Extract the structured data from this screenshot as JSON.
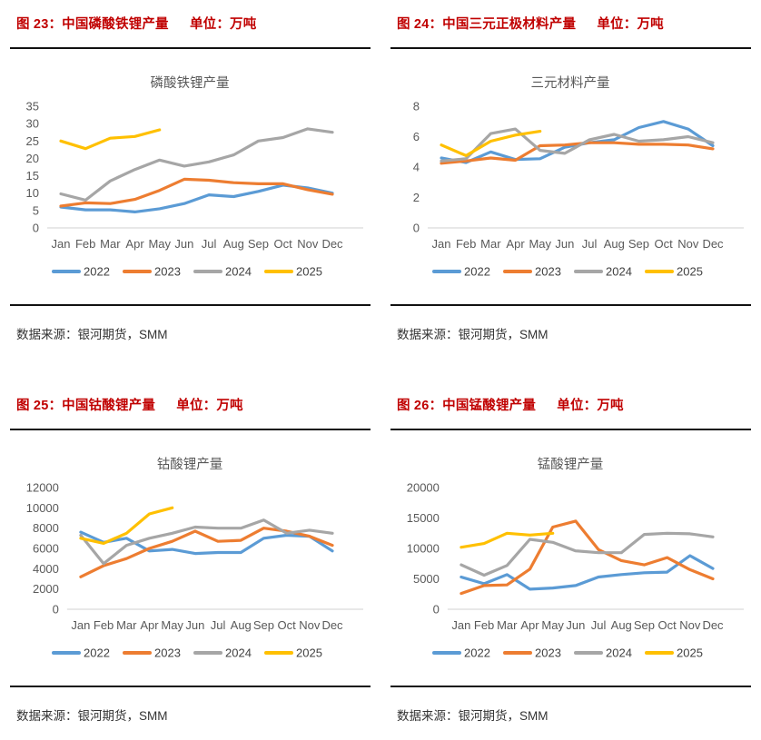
{
  "page": {
    "source_note": "数据来源：银河期货，SMM"
  },
  "colors": {
    "figure_title": "#C00000",
    "axis_text": "#595959",
    "legend_text": "#404040",
    "axis_line": "#D9D9D9",
    "series": {
      "2022": "#5B9BD5",
      "2023": "#ED7D31",
      "2024": "#A6A6A6",
      "2025": "#FFC000"
    }
  },
  "panels": [
    {
      "figure_label": "图 23：中国磷酸铁锂产量",
      "unit": "单位：万吨"
    },
    {
      "figure_label": "图 24：中国三元正极材料产量",
      "unit": "单位：万吨"
    },
    {
      "figure_label": "图 25：中国钴酸锂产量",
      "unit": "单位：万吨"
    },
    {
      "figure_label": "图 26：中国锰酸锂产量",
      "unit": "单位：万吨"
    }
  ],
  "chart_data": [
    {
      "type": "line",
      "title": "磷酸铁锂产量",
      "categories": [
        "Jan",
        "Feb",
        "Mar",
        "Apr",
        "May",
        "Jun",
        "Jul",
        "Aug",
        "Sep",
        "Oct",
        "Nov",
        "Dec"
      ],
      "ylim": [
        0,
        35
      ],
      "yticks": [
        0,
        5,
        10,
        15,
        20,
        25,
        30,
        35
      ],
      "grid": false,
      "legend_position": "bottom",
      "series": [
        {
          "name": "2022",
          "values": [
            6.0,
            5.2,
            5.2,
            4.6,
            5.5,
            7.0,
            9.5,
            9.0,
            10.5,
            12.3,
            11.5,
            10.0
          ]
        },
        {
          "name": "2023",
          "values": [
            6.3,
            7.2,
            7.0,
            8.2,
            10.8,
            14.0,
            13.7,
            13.0,
            12.7,
            12.7,
            11.0,
            9.7
          ]
        },
        {
          "name": "2024",
          "values": [
            9.8,
            8.0,
            13.5,
            16.8,
            19.5,
            17.8,
            19.0,
            21.0,
            25.0,
            26.0,
            28.5,
            27.5
          ]
        },
        {
          "name": "2025",
          "values": [
            25.0,
            22.8,
            25.8,
            26.3,
            28.2
          ]
        }
      ]
    },
    {
      "type": "line",
      "title": "三元材料产量",
      "categories": [
        "Jan",
        "Feb",
        "Mar",
        "Apr",
        "May",
        "Jun",
        "Jul",
        "Aug",
        "Sep",
        "Oct",
        "Nov",
        "Dec"
      ],
      "ylim": [
        0,
        8
      ],
      "yticks": [
        0,
        2,
        4,
        6,
        8
      ],
      "grid": false,
      "legend_position": "bottom",
      "series": [
        {
          "name": "2022",
          "values": [
            4.6,
            4.3,
            5.0,
            4.5,
            4.55,
            5.3,
            5.6,
            5.8,
            6.6,
            7.0,
            6.5,
            5.4
          ]
        },
        {
          "name": "2023",
          "values": [
            4.25,
            4.4,
            4.6,
            4.45,
            5.4,
            5.45,
            5.6,
            5.6,
            5.5,
            5.5,
            5.45,
            5.2
          ]
        },
        {
          "name": "2024",
          "values": [
            4.4,
            4.55,
            6.2,
            6.5,
            5.1,
            4.9,
            5.8,
            6.15,
            5.7,
            5.8,
            6.0,
            5.6
          ]
        },
        {
          "name": "2025",
          "values": [
            5.45,
            4.75,
            5.7,
            6.1,
            6.35
          ]
        }
      ]
    },
    {
      "type": "line",
      "title": "钴酸锂产量",
      "categories": [
        "Jan",
        "Feb",
        "Mar",
        "Apr",
        "May",
        "Jun",
        "Jul",
        "Aug",
        "Sep",
        "Oct",
        "Nov",
        "Dec"
      ],
      "ylim": [
        0,
        12000
      ],
      "yticks": [
        0,
        2000,
        4000,
        6000,
        8000,
        10000,
        12000
      ],
      "grid": false,
      "legend_position": "bottom",
      "series": [
        {
          "name": "2022",
          "values": [
            7600,
            6600,
            7000,
            5750,
            5900,
            5500,
            5600,
            5600,
            7000,
            7300,
            7200,
            5750
          ]
        },
        {
          "name": "2023",
          "values": [
            3200,
            4300,
            5000,
            6000,
            6700,
            7700,
            6700,
            6800,
            8000,
            7700,
            7200,
            6300
          ]
        },
        {
          "name": "2024",
          "values": [
            7300,
            4500,
            6300,
            7000,
            7500,
            8100,
            8000,
            8000,
            8800,
            7500,
            7800,
            7500
          ]
        },
        {
          "name": "2025",
          "values": [
            7000,
            6500,
            7500,
            9400,
            10000
          ]
        }
      ]
    },
    {
      "type": "line",
      "title": "锰酸锂产量",
      "categories": [
        "Jan",
        "Feb",
        "Mar",
        "Apr",
        "May",
        "Jun",
        "Jul",
        "Aug",
        "Sep",
        "Oct",
        "Nov",
        "Dec"
      ],
      "ylim": [
        0,
        20000
      ],
      "yticks": [
        0,
        5000,
        10000,
        15000,
        20000
      ],
      "grid": false,
      "legend_position": "bottom",
      "series": [
        {
          "name": "2022",
          "values": [
            5300,
            4200,
            5700,
            3300,
            3500,
            3900,
            5300,
            5700,
            6000,
            6100,
            8800,
            6700
          ]
        },
        {
          "name": "2023",
          "values": [
            2600,
            3900,
            4000,
            6600,
            13500,
            14500,
            9800,
            8000,
            7300,
            8500,
            6500,
            5000
          ]
        },
        {
          "name": "2024",
          "values": [
            7300,
            5600,
            7200,
            11500,
            11000,
            9600,
            9300,
            9300,
            12300,
            12500,
            12400,
            11900
          ]
        },
        {
          "name": "2025",
          "values": [
            10200,
            10800,
            12500,
            12200,
            12500
          ]
        }
      ]
    }
  ]
}
